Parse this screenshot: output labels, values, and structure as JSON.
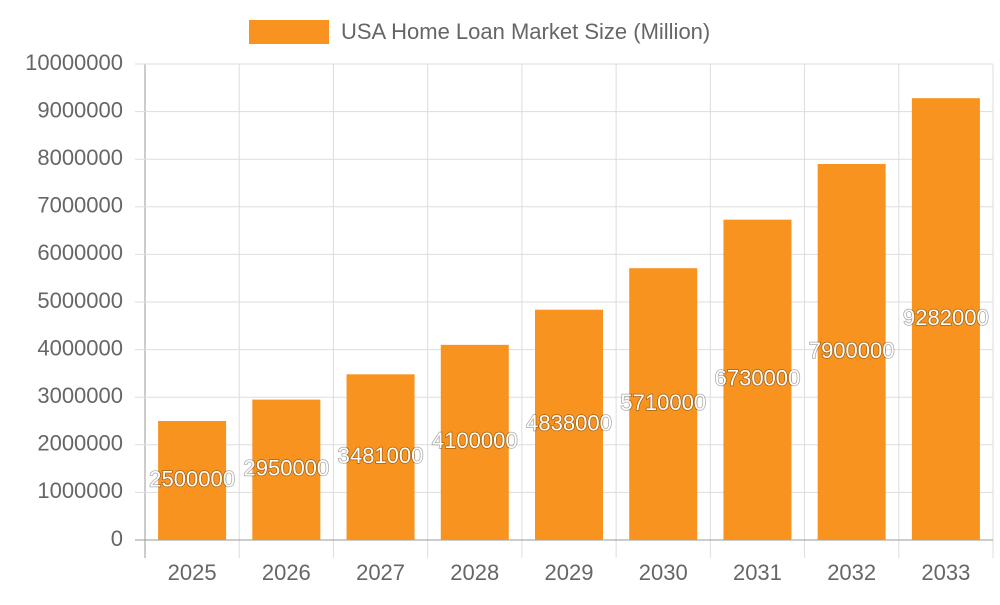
{
  "chart_data": {
    "type": "bar",
    "categories": [
      "2025",
      "2026",
      "2027",
      "2028",
      "2029",
      "2030",
      "2031",
      "2032",
      "2033"
    ],
    "series": [
      {
        "name": "USA Home Loan Market Size (Million)",
        "color": "#f7931e",
        "values": [
          2500000,
          2950000,
          3481000,
          4100000,
          4838000,
          5710000,
          6730000,
          7900000,
          9282000
        ]
      }
    ],
    "ylim": [
      0,
      10000000
    ],
    "yticks": [
      0,
      1000000,
      2000000,
      3000000,
      4000000,
      5000000,
      6000000,
      7000000,
      8000000,
      9000000,
      10000000
    ],
    "grid": true,
    "legend": "top",
    "data_labels": true
  }
}
